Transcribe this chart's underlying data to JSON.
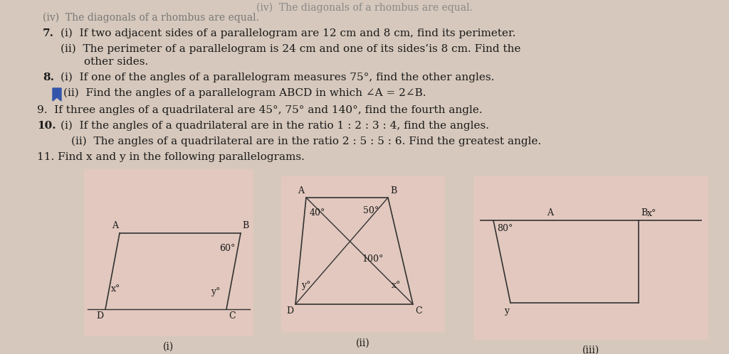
{
  "bg_color": "#d6c8bc",
  "fig_bg_color": "#ddc8bc",
  "text_color": "#1a1a1a",
  "line_color": "#333333",
  "q7i": "7.    (i)  If two adjacent sides of a parallelogram are 12 cm and 8 cm, find its perimeter.",
  "q7ii_a": "       (ii)  The perimeter of a parallelogram is 24 cm and one of its sides’is 8 cm. Find the",
  "q7ii_b": "               other sides.",
  "q8i": "8.    (i)  If one of the angles of a parallelogram measures 75°, find the other angles.",
  "q8ii": "       (ii)  Find the angles of a parallelogram ABCD in which ∠A = 2∠B.",
  "q9": "9.  If three angles of a quadrilateral are 45°, 75° and 140°, find the fourth angle.",
  "q10i": "10.      (i)  If the angles of a quadrilateral are in the ratio 1 : 2 : 3 : 4, find the angles.",
  "q10ii": "          (ii)  The angles of a quadrilateral are in the ratio 2 : 5 : 5 : 6. Find the greatest angle.",
  "q11": "11. Find x and y in the following parallelograms.",
  "header": "(iv)  The diagonals of a rhombus are equal."
}
